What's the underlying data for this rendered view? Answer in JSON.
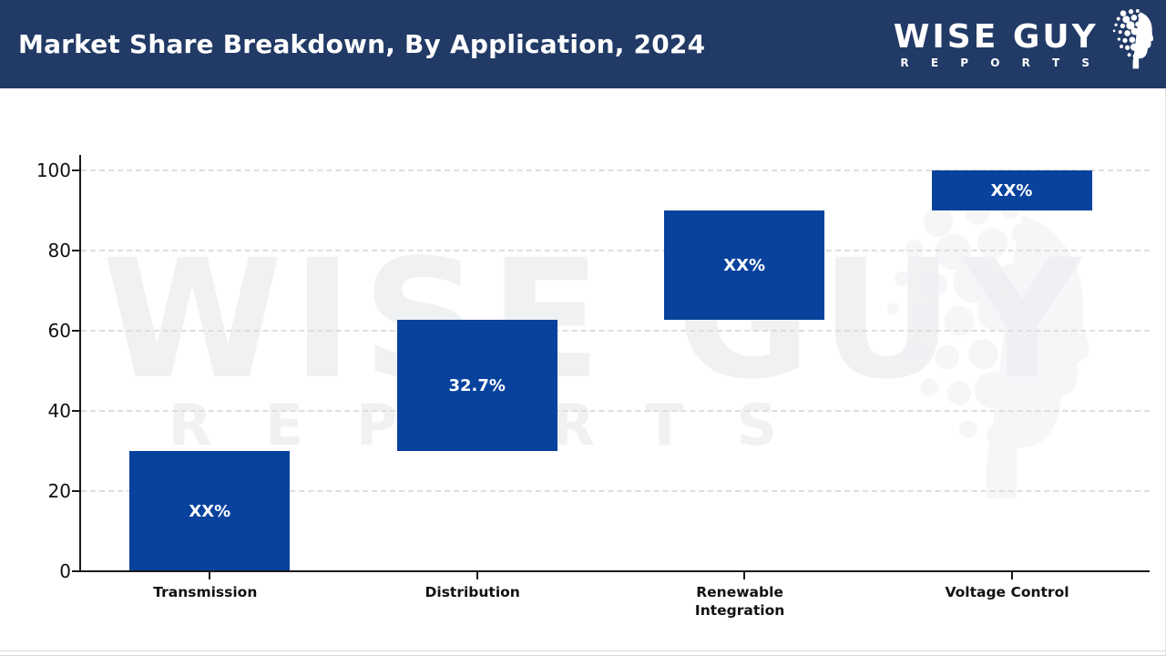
{
  "header": {
    "title": "Market Share Breakdown, By Application, 2024",
    "brand": {
      "line1": "WISE GUY",
      "line2": "R E P O R T S"
    }
  },
  "watermark": {
    "line1": "WISE GUY",
    "line2": "REPORTS"
  },
  "chart_data": {
    "type": "bar",
    "subtype": "floating-waterfall",
    "title": "Market Share Breakdown, By Application, 2024",
    "categories": [
      "Transmission",
      "Distribution",
      "Renewable Integration",
      "Voltage Control"
    ],
    "segments": [
      {
        "category": "Transmission",
        "start": 0,
        "end": 30,
        "label": "XX%"
      },
      {
        "category": "Distribution",
        "start": 30,
        "end": 62.7,
        "label": "32.7%"
      },
      {
        "category": "Renewable Integration",
        "start": 62.7,
        "end": 90,
        "label": "XX%"
      },
      {
        "category": "Voltage Control",
        "start": 90,
        "end": 100,
        "label": "XX%"
      }
    ],
    "xlabel": "",
    "ylabel": "",
    "yticks": [
      0,
      20,
      40,
      60,
      80,
      100
    ],
    "ylim": [
      0,
      104
    ],
    "grid": "horizontal-dashed",
    "legend": "none",
    "bar_color": "#08429d"
  },
  "colors": {
    "header_bg": "#213a66",
    "title_text": "#ffffff",
    "bar": "#08429d",
    "bar_label_text": "#ffffff",
    "axis": "#1a1a1a",
    "gridline": "#dedede",
    "watermark": "#f0f1f3"
  }
}
